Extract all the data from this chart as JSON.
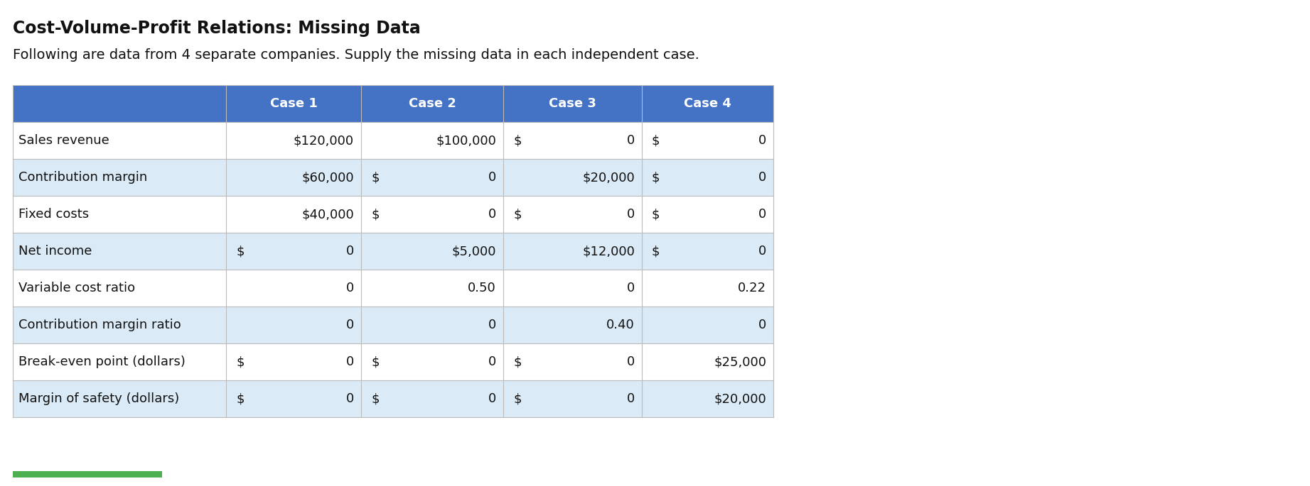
{
  "title": "Cost-Volume-Profit Relations: Missing Data",
  "subtitle": "Following are data from 4 separate companies. Supply the missing data in each independent case.",
  "header_bg": "#4472C4",
  "header_text_color": "#FFFFFF",
  "alt_row_bg": "#DAEAF6",
  "normal_row_bg": "#FFFFFF",
  "row_labels": [
    "Sales revenue",
    "Contribution margin",
    "Fixed costs",
    "Net income",
    "Variable cost ratio",
    "Contribution margin ratio",
    "Break-even point (dollars)",
    "Margin of safety (dollars)"
  ],
  "col_headers": [
    "Case 1",
    "Case 2",
    "Case 3",
    "Case 4"
  ],
  "cell_data": [
    [
      [
        "",
        "$120,000"
      ],
      [
        "",
        "$100,000"
      ],
      [
        "$",
        "0"
      ],
      [
        "$",
        "0"
      ]
    ],
    [
      [
        "",
        "$60,000"
      ],
      [
        "$",
        "0"
      ],
      [
        "",
        "$20,000"
      ],
      [
        "$",
        "0"
      ]
    ],
    [
      [
        "",
        "$40,000"
      ],
      [
        "$",
        "0"
      ],
      [
        "$",
        "0"
      ],
      [
        "$",
        "0"
      ]
    ],
    [
      [
        "$",
        "0"
      ],
      [
        "",
        "$5,000"
      ],
      [
        "",
        "$12,000"
      ],
      [
        "$",
        "0"
      ]
    ],
    [
      [
        "",
        "0"
      ],
      [
        "",
        "0.50"
      ],
      [
        "",
        "0"
      ],
      [
        "",
        "0.22"
      ]
    ],
    [
      [
        "",
        "0"
      ],
      [
        "",
        "0"
      ],
      [
        "",
        "0.40"
      ],
      [
        "",
        "0"
      ]
    ],
    [
      [
        "$",
        "0"
      ],
      [
        "$",
        "0"
      ],
      [
        "$",
        "0"
      ],
      [
        "",
        "$25,000"
      ]
    ],
    [
      [
        "$",
        "0"
      ],
      [
        "$",
        "0"
      ],
      [
        "$",
        "0"
      ],
      [
        "",
        "$20,000"
      ]
    ]
  ],
  "green_bar_color": "#4CAF50",
  "title_fontsize": 17,
  "subtitle_fontsize": 14,
  "header_fontsize": 13,
  "cell_fontsize": 13,
  "row_label_fontsize": 13,
  "bg_color": "#FFFFFF"
}
